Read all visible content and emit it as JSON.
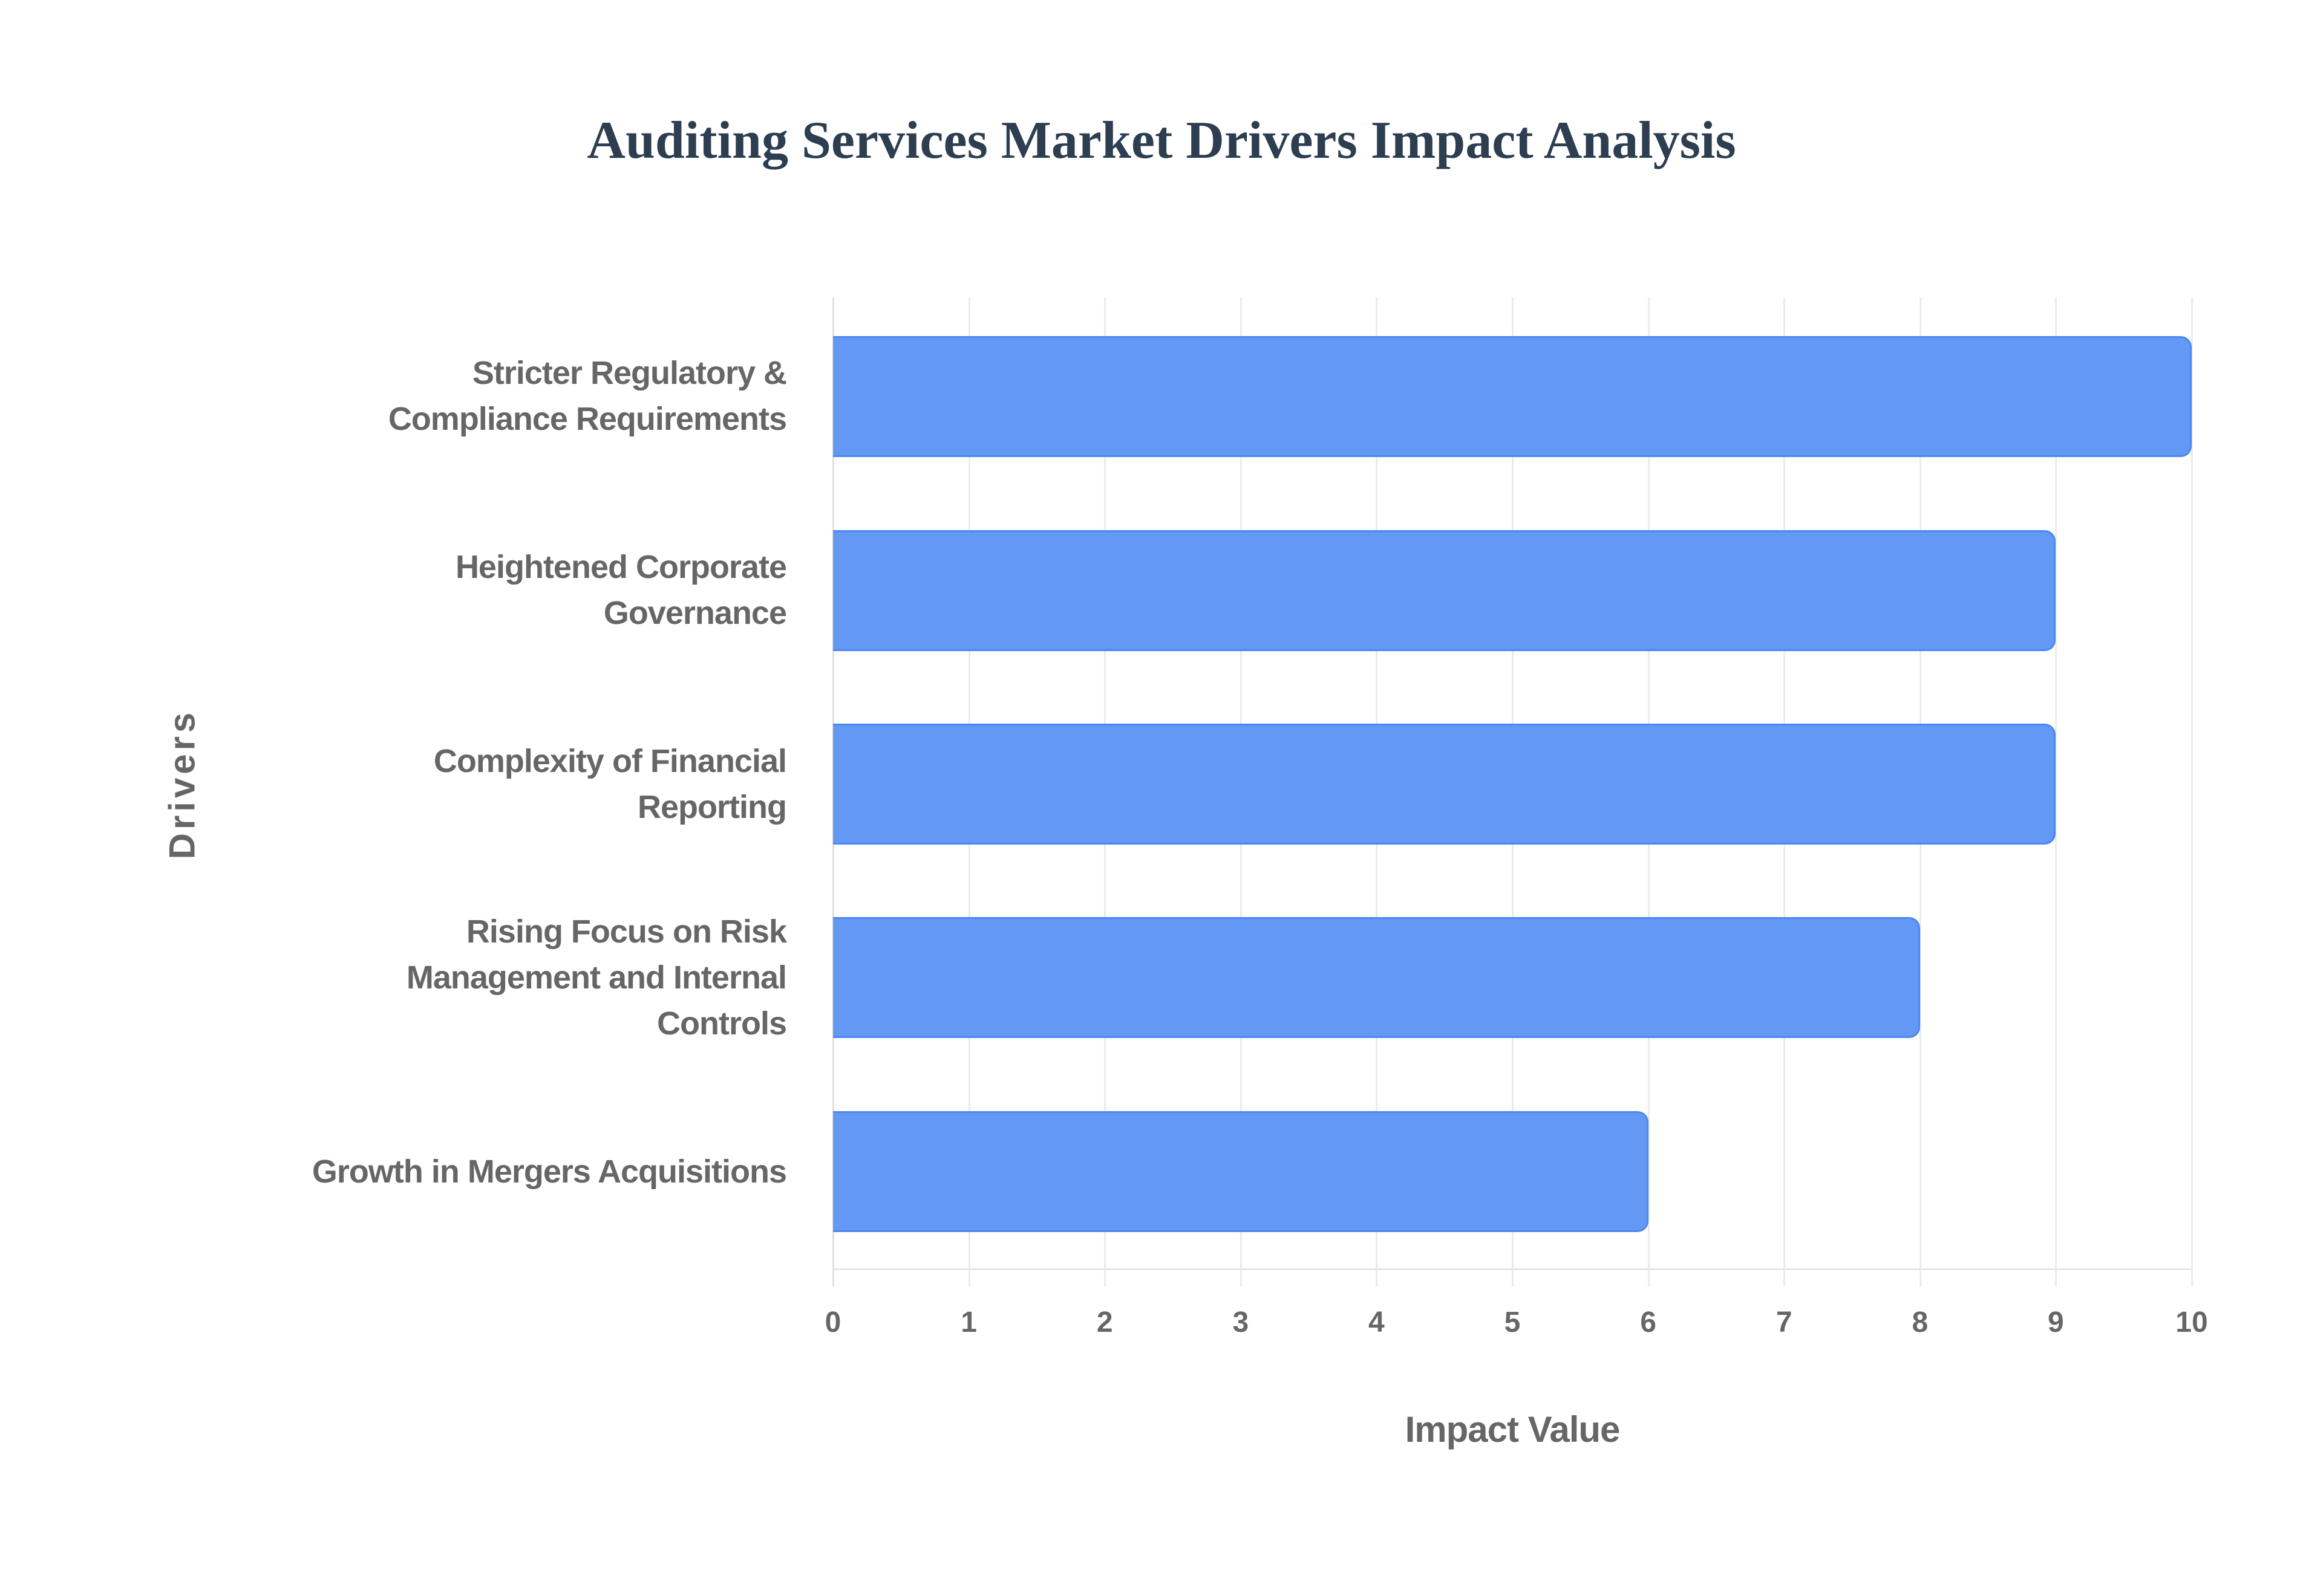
{
  "title": "Auditing Services Market Drivers Impact Analysis",
  "x_axis": {
    "title": "Impact Value",
    "ticks": [
      "0",
      "1",
      "2",
      "3",
      "4",
      "5",
      "6",
      "7",
      "8",
      "9",
      "10"
    ]
  },
  "y_axis": {
    "title": "Drivers"
  },
  "labels": {
    "c0": [
      "Stricter Regulatory &",
      "Compliance Requirements"
    ],
    "c1": [
      "Heightened Corporate",
      "Governance"
    ],
    "c2": [
      "Complexity of Financial",
      "Reporting"
    ],
    "c3": [
      "Rising Focus on Risk",
      "Management and Internal",
      "Controls"
    ],
    "c4": [
      "Growth in Mergers Acquisitions"
    ]
  },
  "colors": {
    "bar_fill": "#6399f5",
    "bar_border": "#4a87f2",
    "title": "#2c3e50",
    "text": "#666666",
    "grid": "#ebebeb"
  },
  "chart_data": {
    "type": "bar",
    "orientation": "horizontal",
    "title": "Auditing Services Market Drivers Impact Analysis",
    "xlabel": "Impact Value",
    "ylabel": "Drivers",
    "categories": [
      "Stricter Regulatory & Compliance Requirements",
      "Heightened Corporate Governance",
      "Complexity of Financial Reporting",
      "Rising Focus on Risk Management and Internal Controls",
      "Growth in Mergers Acquisitions"
    ],
    "values": [
      10,
      9,
      9,
      8,
      6
    ],
    "xlim": [
      0,
      10
    ],
    "xticks": [
      0,
      1,
      2,
      3,
      4,
      5,
      6,
      7,
      8,
      9,
      10
    ],
    "grid": true,
    "legend": false
  }
}
